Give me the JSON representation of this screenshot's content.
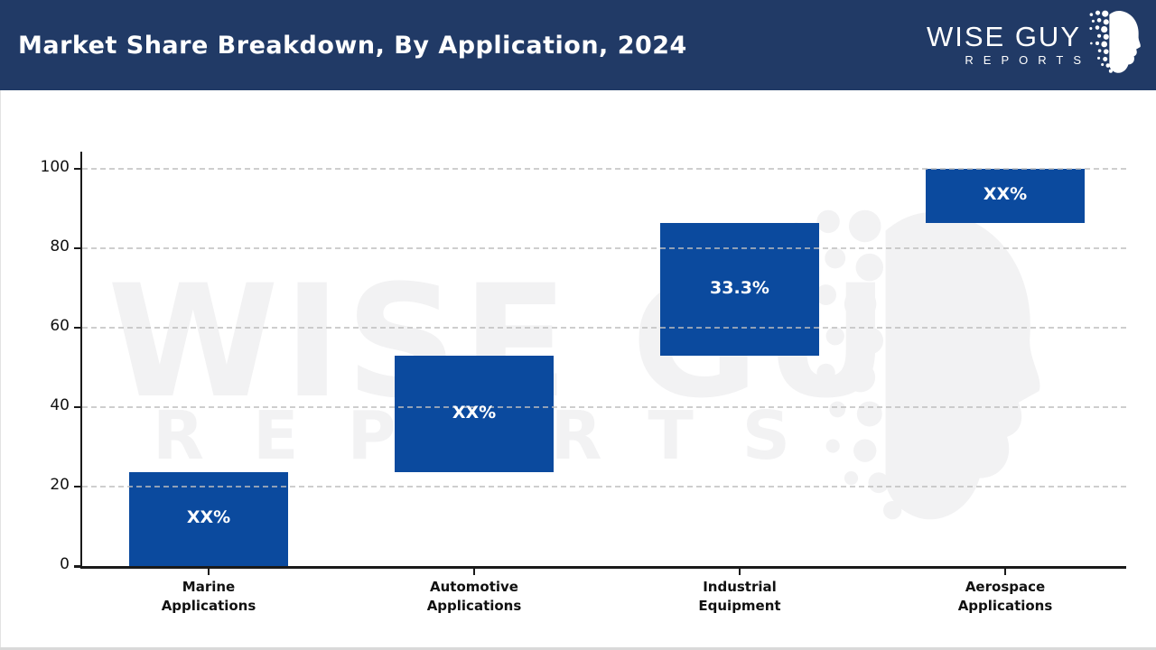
{
  "header": {
    "title": "Market Share Breakdown, By Application, 2024",
    "logo": {
      "line1": "WISE GUY",
      "line2": "REPORTS"
    }
  },
  "watermark": {
    "line1": "WISE GUY",
    "line2": "REPORTS"
  },
  "chart_data": {
    "type": "bar",
    "subtype": "waterfall",
    "title": "Market Share Breakdown, By Application, 2024",
    "categories": [
      "Marine\nApplications",
      "Automotive\nApplications",
      "Industrial\nEquipment",
      "Aerospace\nApplications"
    ],
    "segments": [
      {
        "category": "Marine Applications",
        "start": 0,
        "end": 23.5,
        "label": "XX%"
      },
      {
        "category": "Automotive Applications",
        "start": 23.5,
        "end": 52.9,
        "label": "XX%"
      },
      {
        "category": "Industrial Equipment",
        "start": 52.9,
        "end": 86.2,
        "label": "33.3%"
      },
      {
        "category": "Aerospace Applications",
        "start": 86.2,
        "end": 100,
        "label": "XX%"
      }
    ],
    "values_pct": [
      23.5,
      29.4,
      33.3,
      13.8
    ],
    "yticks": [
      0,
      20,
      40,
      60,
      80,
      100
    ],
    "ylim": [
      0,
      104
    ],
    "grid": "horizontal-dashed",
    "legend": "none",
    "bar_color": "#0b4a9e",
    "bar_label_color": "#ffffff",
    "axis_color": "#1a1a1a",
    "gridline_color": "#cccccc"
  }
}
